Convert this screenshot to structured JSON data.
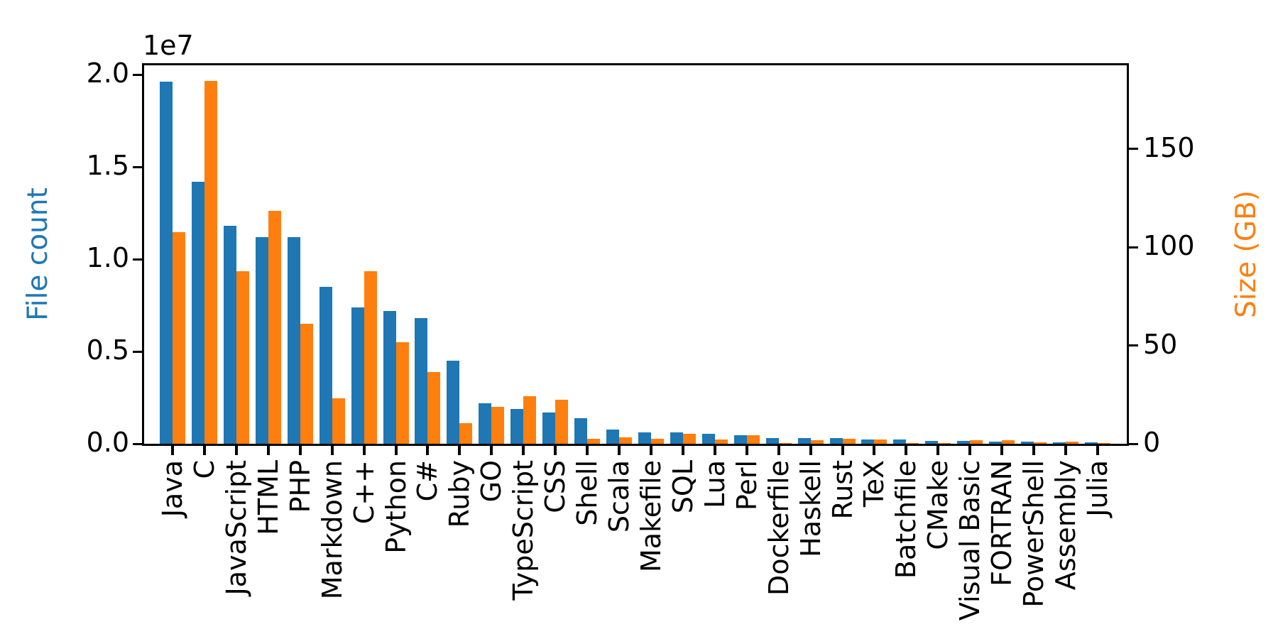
{
  "figure": {
    "background": "#ffffff",
    "offset_text": "1e7"
  },
  "chart_data": {
    "type": "bar",
    "title": "",
    "grid": false,
    "legend": "none",
    "categories": [
      "Java",
      "C",
      "JavaScript",
      "HTML",
      "PHP",
      "Markdown",
      "C++",
      "Python",
      "C#",
      "Ruby",
      "GO",
      "TypeScript",
      "CSS",
      "Shell",
      "Scala",
      "Makefile",
      "SQL",
      "Lua",
      "Perl",
      "Dockerfile",
      "Haskell",
      "Rust",
      "TeX",
      "Batchfile",
      "CMake",
      "Visual Basic",
      "FORTRAN",
      "PowerShell",
      "Assembly",
      "Julia"
    ],
    "series": [
      {
        "name": "File count",
        "axis": "left",
        "color": "#1f77b4",
        "unit": "files (millions)",
        "values_millions": [
          19.6,
          14.2,
          11.8,
          11.2,
          11.2,
          8.5,
          7.4,
          7.2,
          6.8,
          4.5,
          2.2,
          1.9,
          1.7,
          1.4,
          0.78,
          0.63,
          0.62,
          0.55,
          0.47,
          0.32,
          0.3,
          0.31,
          0.23,
          0.24,
          0.17,
          0.15,
          0.13,
          0.13,
          0.09,
          0.08
        ]
      },
      {
        "name": "Size (GB)",
        "axis": "right",
        "color": "#ff7f0e",
        "unit": "GB",
        "values_gb": [
          107.5,
          184.4,
          87.7,
          118.4,
          61.2,
          23.0,
          87.8,
          51.6,
          36.5,
          10.6,
          18.8,
          24.1,
          22.3,
          2.6,
          3.4,
          2.6,
          5.1,
          2.2,
          4.4,
          0.4,
          1.7,
          2.5,
          2.2,
          0.5,
          0.4,
          1.9,
          1.7,
          0.7,
          1.0,
          0.3
        ]
      }
    ],
    "left_axis": {
      "label": "File count",
      "color": "#1f77b4",
      "offset_text": "1e7",
      "tick_labels": [
        "0.0",
        "0.5",
        "1.0",
        "1.5",
        "2.0"
      ],
      "tick_values_e7": [
        0,
        0.5,
        1.0,
        1.5,
        2.0
      ],
      "ylim_e7": [
        0,
        2.05
      ]
    },
    "right_axis": {
      "label": "Size (GB)",
      "color": "#ff7f0e",
      "tick_labels": [
        "0",
        "50",
        "100",
        "150"
      ],
      "tick_values_gb": [
        0,
        50,
        100,
        150
      ],
      "ylim_gb": [
        0,
        192.5
      ]
    }
  }
}
